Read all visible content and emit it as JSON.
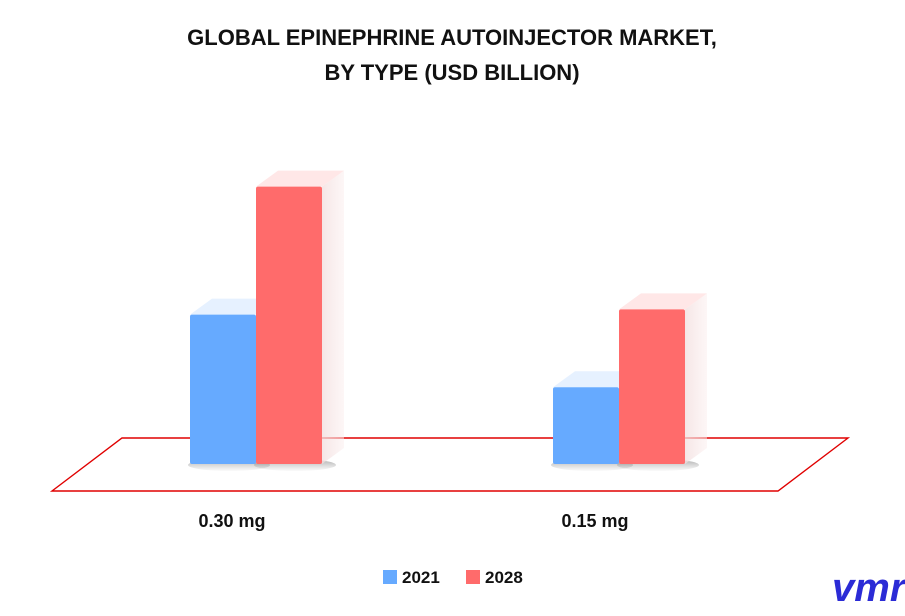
{
  "chart_data": {
    "type": "bar",
    "title_lines": [
      "GLOBAL EPINEPHRINE AUTOINJECTOR MARKET,",
      "BY TYPE (USD BILLION)"
    ],
    "categories": [
      "0.30 mg",
      "0.15 mg"
    ],
    "series": [
      {
        "name": "2021",
        "values": [
          1.4,
          0.72
        ],
        "color": "#66aaff"
      },
      {
        "name": "2028",
        "values": [
          2.6,
          1.45
        ],
        "color": "#ff6b6b"
      }
    ],
    "ylim": [
      0,
      3.0
    ],
    "legend_position": "bottom-center",
    "grid": false,
    "style": "3d-bars-with-floor"
  },
  "branding": {
    "logo_text": "vmr",
    "logo_color": "#2b2bd6",
    "floor_color": "#e00000"
  }
}
